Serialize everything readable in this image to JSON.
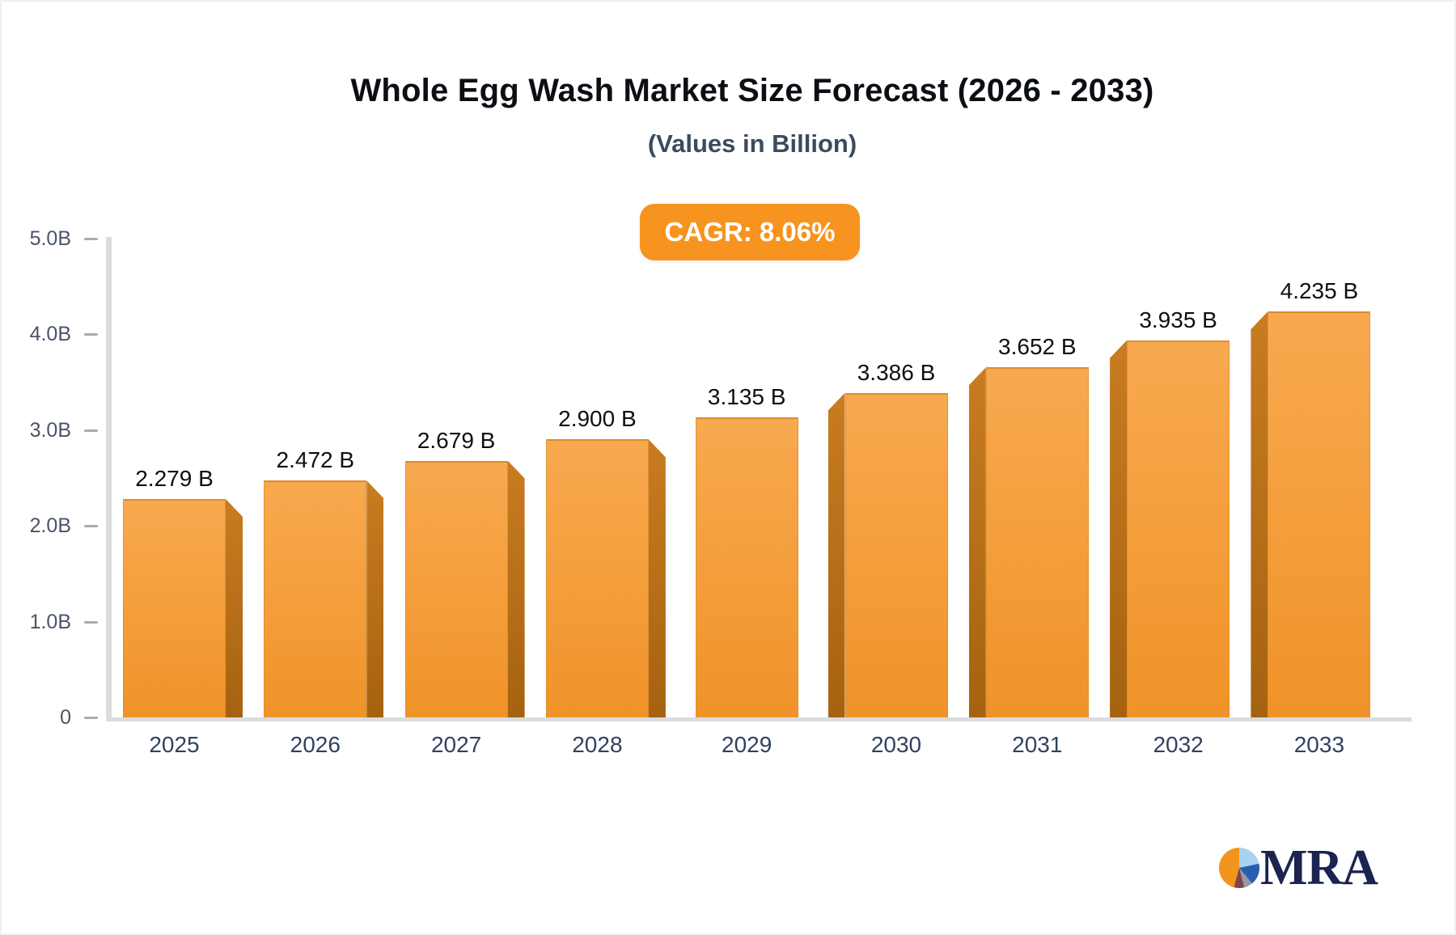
{
  "header": {
    "title": "Whole Egg Wash Market Size Forecast (2026 - 2033)",
    "subtitle": "(Values in Billion)",
    "cagr_badge": "CAGR: 8.06%"
  },
  "chart_data": {
    "type": "bar",
    "title": "Whole Egg Wash Market Size Forecast (2026 - 2033)",
    "subtitle": "(Values in Billion)",
    "cagr": "8.06%",
    "categories": [
      "2025",
      "2026",
      "2027",
      "2028",
      "2029",
      "2030",
      "2031",
      "2032",
      "2033"
    ],
    "values": [
      2.279,
      2.472,
      2.679,
      2.9,
      3.135,
      3.386,
      3.652,
      3.935,
      4.235
    ],
    "value_labels": [
      "2.279 B",
      "2.472 B",
      "2.679 B",
      "2.900 B",
      "3.135 B",
      "3.386 B",
      "3.652 B",
      "3.935 B",
      "4.235 B"
    ],
    "y_ticks": [
      {
        "value": 5,
        "label": "5.0B"
      },
      {
        "value": 4,
        "label": "4.0B"
      },
      {
        "value": 3,
        "label": "3.0B"
      },
      {
        "value": 2,
        "label": "2.0B"
      },
      {
        "value": 1,
        "label": "1.0B"
      },
      {
        "value": 0,
        "label": "0"
      }
    ],
    "ylim": [
      0,
      5
    ],
    "grid": false,
    "legend": false,
    "colors": {
      "bar_face_top": "#F8A94F",
      "bar_face_bottom": "#F09329",
      "bar_edge": "#DC8C2A",
      "bar_side_top": "#C97C21",
      "bar_side_bottom": "#A66210",
      "axis_line": "#DBDCE0",
      "tick_text": "#4A5568",
      "x_label_text": "#31415F",
      "value_label_text": "#0D0F12",
      "badge_bg": "#F7941F",
      "badge_text": "#FFFFFF"
    }
  },
  "footer": {
    "logo_text": "MRA",
    "logo_text_color": "#1B2350",
    "logo_pie_slices": [
      {
        "name": "light-blue",
        "color": "#A8D3F0",
        "start": 20,
        "end": 78
      },
      {
        "name": "royal-blue",
        "color": "#2A5DB0",
        "start": 78,
        "end": 140
      },
      {
        "name": "gray",
        "color": "#98989F",
        "start": 140,
        "end": 166
      },
      {
        "name": "maroon",
        "color": "#7E434B",
        "start": 166,
        "end": 195
      },
      {
        "name": "orange",
        "color": "#F2941D",
        "start": 195,
        "end": 380
      }
    ]
  }
}
